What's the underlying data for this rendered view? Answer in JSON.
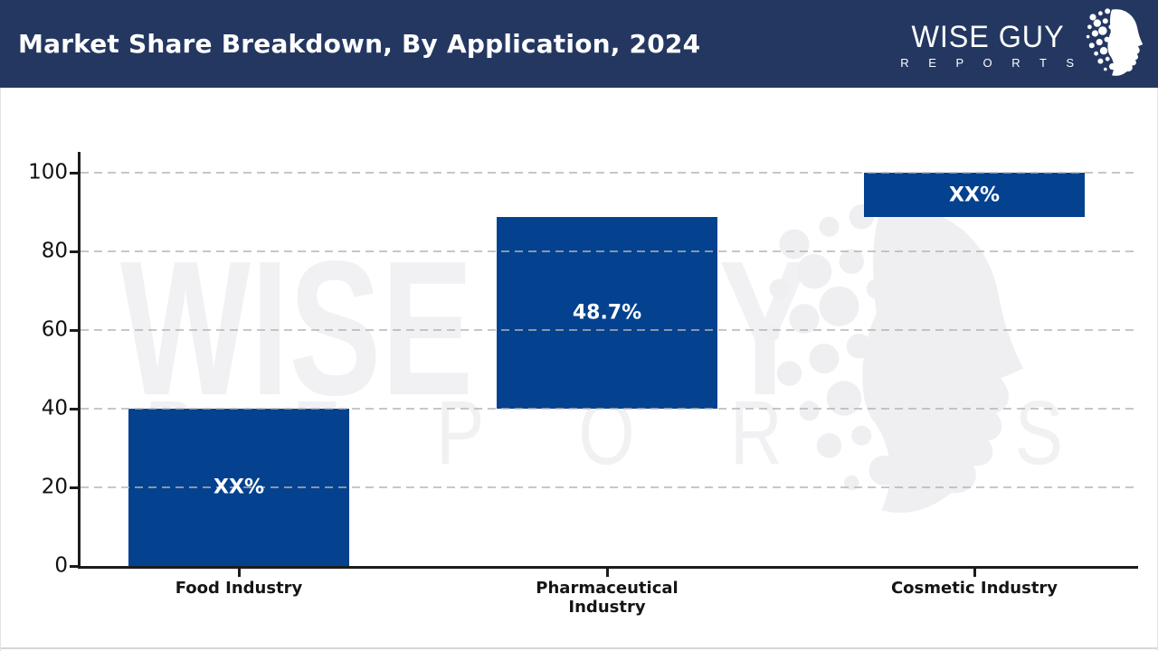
{
  "header": {
    "title": "Market Share Breakdown, By Application, 2024",
    "logo": {
      "line1": "WISE GUY",
      "line2": "R E P O R T S"
    }
  },
  "watermark": {
    "line1": "WISE GUY",
    "line2": "R E P O R T S"
  },
  "colors": {
    "header_bg": "#233761",
    "bar": "#04418f",
    "axis": "#1c1c1c",
    "grid": "#c3c3c3",
    "watermark": "#f1f1f4",
    "bar_label_text": "#ffffff",
    "title_text": "#ffffff"
  },
  "chart_data": {
    "type": "bar",
    "variant": "waterfall-breakdown",
    "title": "Market Share Breakdown, By Application, 2024",
    "categories": [
      "Food Industry",
      "Pharmaceutical Industry",
      "Cosmetic Industry"
    ],
    "category_display": [
      "Food Industry",
      "Pharmaceutical\nIndustry",
      "Cosmetic Industry"
    ],
    "segments": [
      {
        "category": "Food Industry",
        "start": 0,
        "end": 40,
        "label": "XX%"
      },
      {
        "category": "Pharmaceutical Industry",
        "start": 40,
        "end": 88.7,
        "label": "48.7%"
      },
      {
        "category": "Cosmetic Industry",
        "start": 88.7,
        "end": 100,
        "label": "XX%"
      }
    ],
    "xlabel": "",
    "ylabel": "",
    "yticks": [
      0,
      20,
      40,
      60,
      80,
      100
    ],
    "ylim": [
      0,
      105
    ],
    "grid": "horizontal dashed, drawn above bars",
    "legend": "none"
  }
}
